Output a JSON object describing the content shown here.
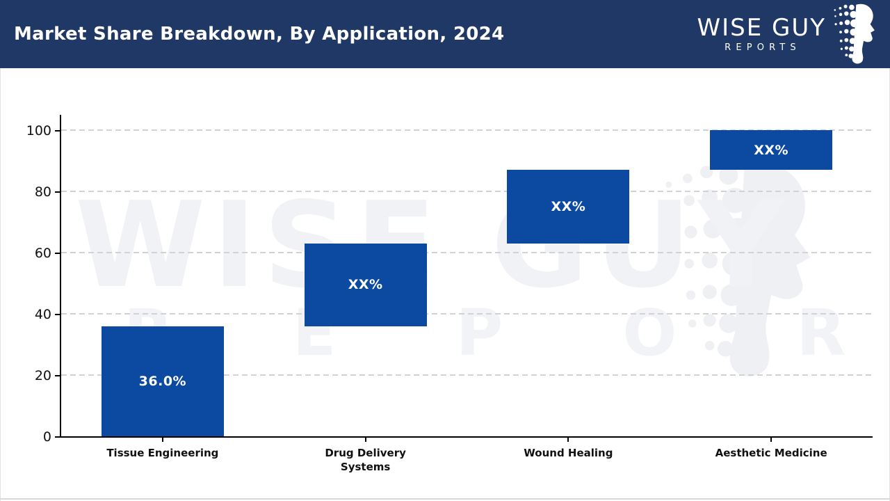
{
  "header": {
    "title": "Market Share Breakdown, By Application, 2024",
    "background_color": "#203866",
    "logo": {
      "wordmark": "WISE GUY",
      "subtext": "REPORTS"
    }
  },
  "watermark": {
    "wordmark": "WISE GUY",
    "subtext": "R E P O R T S"
  },
  "chart_data": {
    "type": "bar",
    "subtype": "waterfall",
    "title": "Market Share Breakdown, By Application, 2024",
    "categories": [
      "Tissue Engineering",
      "Drug Delivery Systems",
      "Wound Healing",
      "Aesthetic Medicine"
    ],
    "category_label_lines": [
      [
        "Tissue Engineering"
      ],
      [
        "Drug Delivery",
        "Systems"
      ],
      [
        "Wound Healing"
      ],
      [
        "Aesthetic Medicine"
      ]
    ],
    "segments": [
      {
        "category": "Tissue Engineering",
        "start": 0,
        "end": 36,
        "value": 36,
        "value_label": "36.0%"
      },
      {
        "category": "Drug Delivery Systems",
        "start": 36,
        "end": 63,
        "value": 27,
        "value_label": "XX%"
      },
      {
        "category": "Wound Healing",
        "start": 63,
        "end": 87,
        "value": 24,
        "value_label": "XX%"
      },
      {
        "category": "Aesthetic Medicine",
        "start": 87,
        "end": 100,
        "value": 13,
        "value_label": "XX%"
      }
    ],
    "yticks": [
      0,
      20,
      40,
      60,
      80,
      100
    ],
    "ylim": [
      0,
      105
    ],
    "xlabel": "",
    "ylabel": "",
    "bar_color": "#0c4aa1",
    "bar_label_color": "#ffffff",
    "grid": "horizontal-dashed",
    "gridline_color": "#d2d2d2",
    "axis_color": "#000000",
    "legend": "none"
  }
}
